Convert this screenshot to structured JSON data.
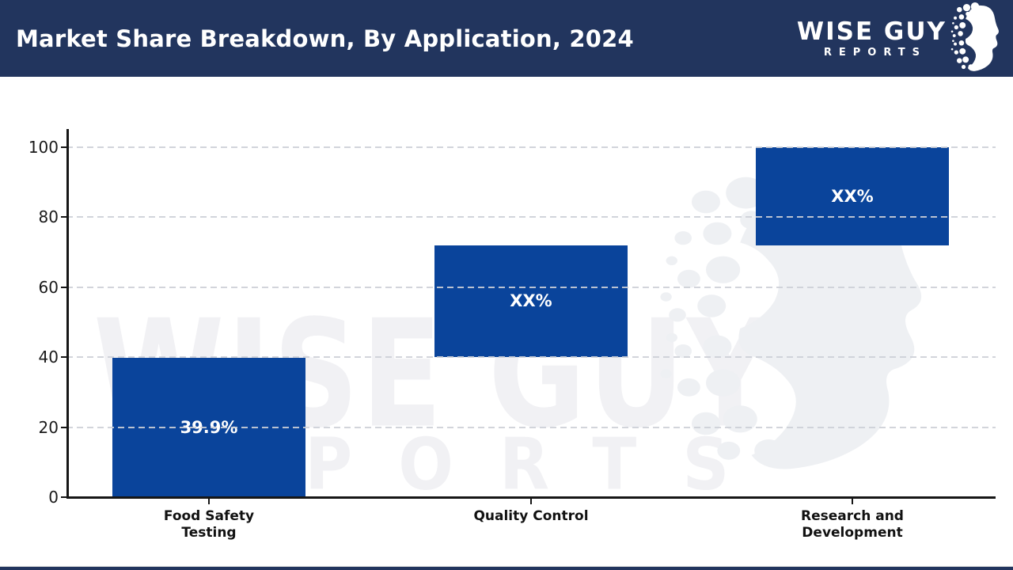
{
  "header": {
    "title": "Market Share Breakdown, By Application, 2024",
    "bg_color": "#22355e",
    "text_color": "#ffffff",
    "logo": {
      "line1": "WISE GUY",
      "line2": "REPORTS"
    }
  },
  "watermark": {
    "line1": "WISE GUY",
    "line2": "REPORTS"
  },
  "chart_data": {
    "type": "bar",
    "subtype": "waterfall",
    "title": "Market Share Breakdown, By Application, 2024",
    "categories": [
      "Food Safety Testing",
      "Quality Control",
      "Research and Development"
    ],
    "category_lines": [
      [
        "Food Safety",
        "Testing"
      ],
      [
        "Quality Control"
      ],
      [
        "Research and",
        "Development"
      ]
    ],
    "series": [
      {
        "name": "Market Share",
        "segments": [
          {
            "category": "Food Safety Testing",
            "start": 0,
            "end": 39.9,
            "label": "39.9%"
          },
          {
            "category": "Quality Control",
            "start": 40,
            "end": 72,
            "label": "XX%"
          },
          {
            "category": "Research and Development",
            "start": 72,
            "end": 100,
            "label": "XX%"
          }
        ]
      }
    ],
    "ylim": [
      0,
      100
    ],
    "yticks": [
      0,
      20,
      40,
      60,
      80,
      100
    ],
    "xlabel": "",
    "ylabel": "",
    "grid": "horizontal-dashed-above-bars",
    "legend_position": "none",
    "bar_color": "#0a449b",
    "bar_label_color": "#ffffff",
    "grid_color": "#d4d7dd",
    "axis_color": "#161616",
    "tick_label_color": "#1a1a1a"
  }
}
